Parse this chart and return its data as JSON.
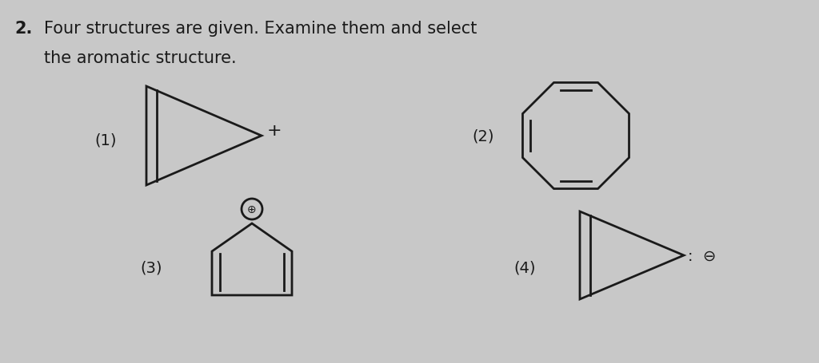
{
  "bg_color": "#c8c8c8",
  "text_color": "#1a1a1a",
  "title_number": "2.",
  "title_line1": "Four structures are given. Examine them and select",
  "title_line2": "the aromatic structure.",
  "label1": "(1)",
  "label2": "(2)",
  "label3": "(3)",
  "label4": "(4)",
  "plus_sign": "+",
  "anion_sign": ":  ⊖",
  "circled_plus": "⊕",
  "font_size_title": 15,
  "font_size_label": 14,
  "font_size_symbol": 15,
  "lw": 2.0
}
